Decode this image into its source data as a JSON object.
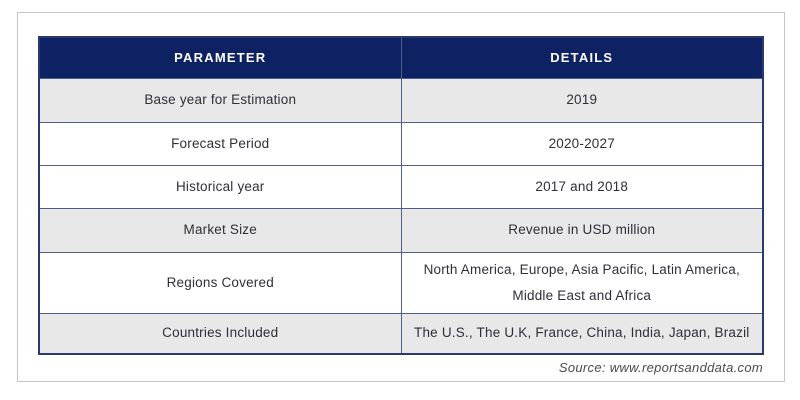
{
  "chart_data": {
    "type": "table",
    "columns": [
      "PARAMETER",
      "DETAILS"
    ],
    "rows": [
      [
        "Base year for Estimation",
        "2019"
      ],
      [
        "Forecast Period",
        "2020-2027"
      ],
      [
        "Historical year",
        "2017 and 2018"
      ],
      [
        "Market Size",
        "Revenue in USD million"
      ],
      [
        "Regions Covered",
        "North America, Europe, Asia Pacific, Latin America, Middle East and Africa"
      ],
      [
        "Countries Included",
        "The U.S., The U.K, France, China, India, Japan, Brazil"
      ]
    ]
  },
  "source": "Source: www.reportsanddata.com",
  "colors": {
    "header_bg": "#0e2163",
    "shaded_row_bg": "#e8e8e8",
    "cell_border": "#4f5e8a",
    "table_outer_border": "#2a3a70",
    "card_border": "#c6c6c6",
    "body_text": "#2f2f38",
    "header_text": "#ffffff",
    "source_text": "#4b4b4b"
  }
}
